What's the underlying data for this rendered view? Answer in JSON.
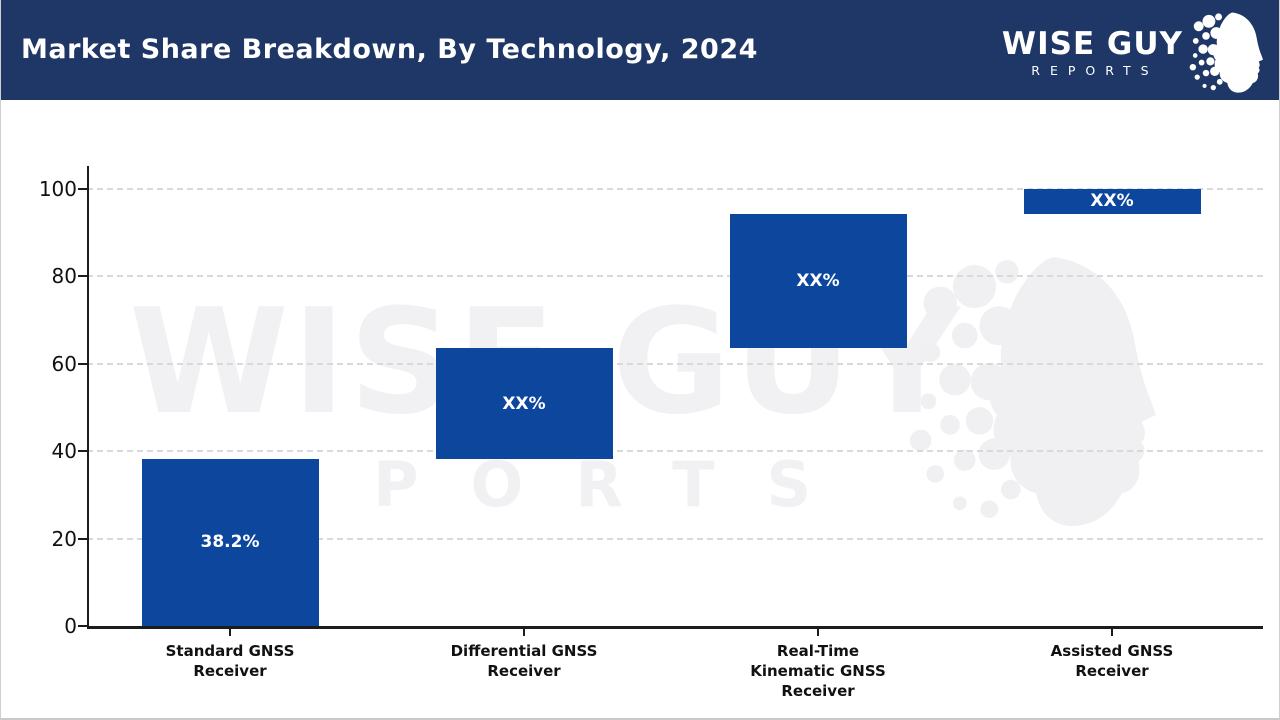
{
  "header": {
    "title": "Market Share Breakdown, By Technology, 2024",
    "bg_color": "#1f3766",
    "logo": {
      "line1": "WISE GUY",
      "line2": "REPORTS"
    }
  },
  "watermark": {
    "line1": "WISE GUY",
    "line2": "REPORTS"
  },
  "chart_data": {
    "type": "bar",
    "subtype": "waterfall",
    "title": "Market Share Breakdown, By Technology, 2024",
    "categories": [
      [
        "Standard GNSS",
        "Receiver"
      ],
      [
        "Differential GNSS",
        "Receiver"
      ],
      [
        "Real-Time",
        "Kinematic GNSS",
        "Receiver"
      ],
      [
        "Assisted GNSS",
        "Receiver"
      ]
    ],
    "segments": [
      {
        "start": 0,
        "end": 38.2,
        "label": "38.2%"
      },
      {
        "start": 38.2,
        "end": 63.5,
        "label": "XX%"
      },
      {
        "start": 63.5,
        "end": 94.2,
        "label": "XX%"
      },
      {
        "start": 94.2,
        "end": 100,
        "label": "XX%"
      }
    ],
    "yticks": [
      0,
      20,
      40,
      60,
      80,
      100
    ],
    "ylim": [
      0,
      104
    ],
    "xlabel": "",
    "ylabel": "",
    "bar_color": "#0d479d",
    "grid": "horizontal-dashed",
    "grid_color": "#d9d9d9",
    "legend": "none",
    "label_color_inside": "#ffffff"
  }
}
